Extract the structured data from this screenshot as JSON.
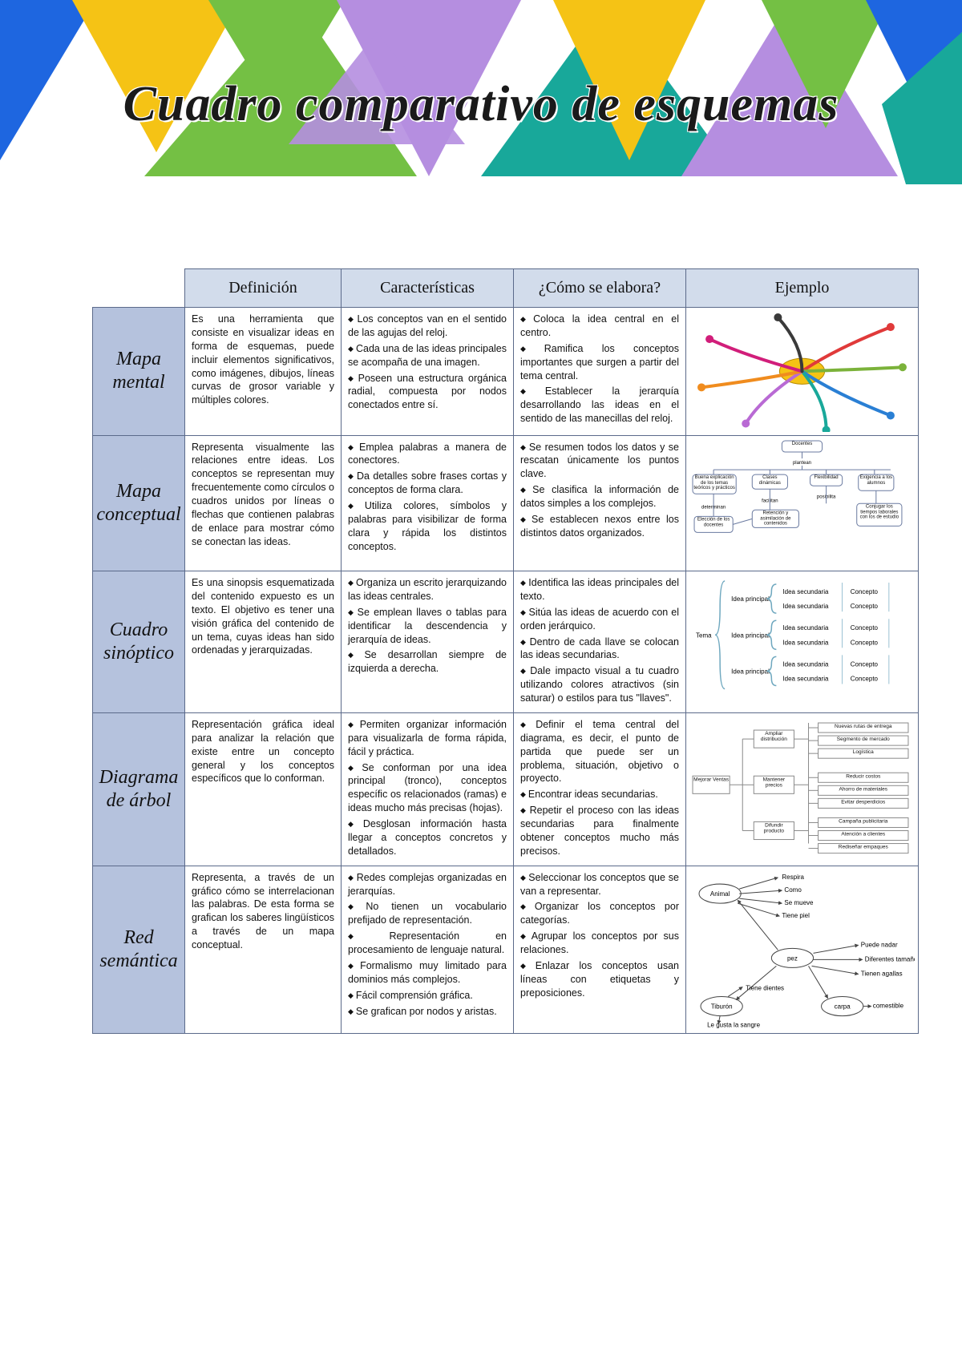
{
  "title": "Cuadro comparativo de esquemas",
  "banner_colors": {
    "blue": "#1e66e0",
    "yellow": "#f5c315",
    "green": "#74c044",
    "purple": "#b58ee0",
    "teal": "#18a89a"
  },
  "table": {
    "header_bg": "#d2dceb",
    "rowname_bg": "#b5c2dd",
    "border_color": "#5b6a8a",
    "columns": [
      "Definición",
      "Características",
      "¿Cómo se elabora?",
      "Ejemplo"
    ],
    "rows": [
      {
        "name": "Mapa mental",
        "definicion": "Es una herramienta que consiste en visualizar ideas en forma de esquemas, puede incluir elementos significativos, como imágenes, dibujos, líneas curvas de grosor variable y múltiples colores.",
        "caracteristicas": [
          "Los conceptos van en el sentido de las agujas del reloj.",
          "Cada una de las ideas principales se acompaña de una imagen.",
          "Poseen una estructura orgánica radial, compuesta por nodos conectados entre sí."
        ],
        "como": [
          "Coloca la idea central en el centro.",
          "Ramifica los conceptos importantes que surgen a partir del tema central.",
          "Establecer la jerarquía desarrollando las ideas en el sentido de las manecillas del reloj."
        ],
        "example": {
          "type": "mindmap",
          "center_color": "#f5c315",
          "branch_colors": [
            "#e03a3a",
            "#7bb23a",
            "#2a7fd4",
            "#19a89a",
            "#b96ad4",
            "#f08c1e",
            "#d11e7a",
            "#3a3a3a"
          ]
        }
      },
      {
        "name": "Mapa conceptual",
        "definicion": "Representa visualmente las relaciones entre ideas. Los conceptos se representan muy frecuentemente como círculos o cuadros unidos por líneas o flechas que contienen palabras de enlace para mostrar cómo se conectan las ideas.",
        "caracteristicas": [
          "Emplea palabras a manera de conectores.",
          "Da detalles sobre frases cortas y conceptos de forma clara.",
          "Utiliza colores, símbolos y palabras para visibilizar de forma clara y rápida los distintos conceptos."
        ],
        "como": [
          "Se resumen todos los datos y se rescatan únicamente los puntos clave.",
          "Se clasifica la información de datos simples a los complejos.",
          "Se establecen nexos entre los distintos datos organizados."
        ],
        "example": {
          "type": "conceptmap",
          "box_border": "#6a7aa0",
          "labels": [
            "Docentes",
            "plantean",
            "Buena explicación de los temas teóricos y prácticos",
            "Clases dinámicas",
            "Flexibilidad",
            "Exigencia a los alumnos",
            "facilitan",
            "posibilita",
            "determinan",
            "Retención y asimilación de contenidos",
            "Conjugar los tiempos laborales con los de estudio",
            "Elección de los docentes"
          ]
        }
      },
      {
        "name": "Cuadro sinóptico",
        "definicion": "Es una sinopsis esquematizada del contenido expuesto es un texto. El objetivo es tener una visión gráfica del contenido de un tema, cuyas ideas han sido ordenadas y jerarquizadas.",
        "caracteristicas": [
          "Organiza un escrito jerarquizando las ideas centrales.",
          "Se emplean llaves o tablas para identificar la descendencia y jerarquía de ideas.",
          "Se desarrollan siempre de izquierda a derecha."
        ],
        "como": [
          "Identifica las ideas principales del texto.",
          "Sitúa las ideas de acuerdo con el orden jerárquico.",
          "Dentro de cada llave se colocan las ideas secundarias.",
          "Dale impacto visual a tu cuadro utilizando colores atractivos (sin saturar) o estilos para tus \"llaves\"."
        ],
        "example": {
          "type": "synoptic",
          "bracket_color": "#6fa8bf",
          "labels": [
            "Tema",
            "Idea principal",
            "Idea secundaria",
            "Concepto"
          ]
        }
      },
      {
        "name": "Diagrama de árbol",
        "definicion": "Representación gráfica ideal para analizar la relación que existe entre un concepto general y los conceptos específicos que lo conforman.",
        "caracteristicas": [
          "Permiten organizar información para visualizarla de forma rápida, fácil y práctica.",
          "Se conforman por una idea principal (tronco), conceptos específic os relacionados (ramas) e ideas mucho más precisas (hojas).",
          "Desglosan información hasta llegar a conceptos concretos y detallados."
        ],
        "como": [
          "Definir el tema central del diagrama, es decir, el punto de partida que puede ser un problema, situación, objetivo o proyecto.",
          "Encontrar ideas secundarias.",
          "Repetir el proceso con las ideas secundarias para finalmente obtener conceptos mucho más precisos."
        ],
        "example": {
          "type": "tree",
          "box_border": "#8a8a8a",
          "labels": [
            "Mejorar Ventas",
            "Ampliar distribución",
            "Mantener precios",
            "Difundir producto",
            "Nuevas rutas de entrega",
            "Segmento de mercado",
            "Logística",
            "Reducir costos",
            "Ahorro de materiales",
            "Evitar desperdicios",
            "Campaña publicitaria",
            "Atención a clientes",
            "Rediseñar empaques"
          ]
        }
      },
      {
        "name": "Red semántica",
        "definicion": "Representa, a través de un gráfico cómo se interrelacionan las palabras. De esta forma se grafican los saberes lingüísticos a través de un mapa conceptual.",
        "caracteristicas": [
          "Redes complejas organizadas en jerarquías.",
          "No tienen un vocabulario prefijado de representación.",
          "Representación en procesamiento de lenguaje natural.",
          "Formalismo muy limitado para dominios más complejos.",
          "Fácil comprensión gráfica.",
          "Se grafican por nodos y aristas."
        ],
        "como": [
          "Seleccionar los conceptos que se van a representar.",
          "Organizar los conceptos por categorías.",
          "Agrupar los conceptos por sus relaciones.",
          "Enlazar los conceptos usan líneas con etiquetas y preposiciones."
        ],
        "example": {
          "type": "semanticnet",
          "node_border": "#444",
          "labels": [
            "Animal",
            "pez",
            "Tiburón",
            "carpa",
            "Respira",
            "Como",
            "Se mueve",
            "Tiene piel",
            "Puede nadar",
            "Diferentes tamaños",
            "Tienen agallas",
            "Tiene dientes",
            "Le gusta la sangre",
            "comestible"
          ]
        }
      }
    ]
  }
}
